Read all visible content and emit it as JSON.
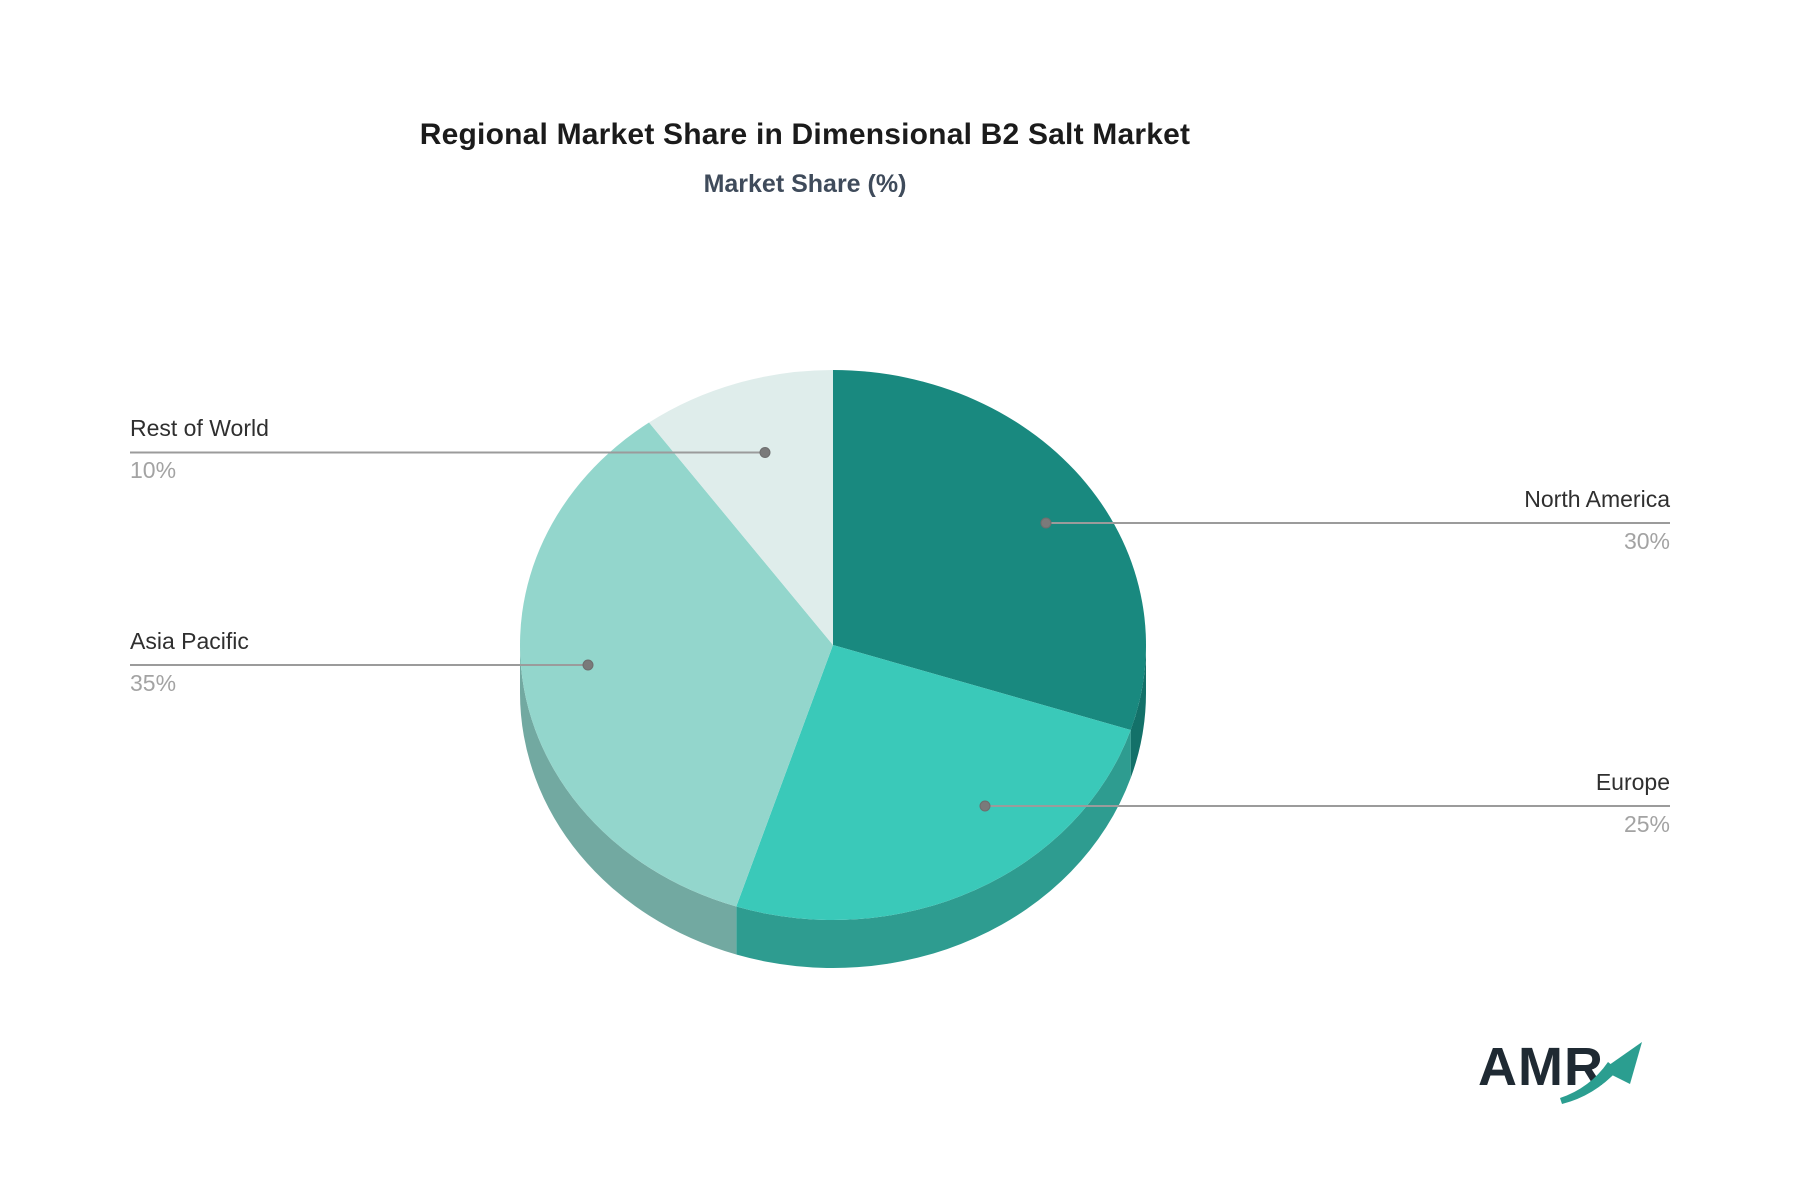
{
  "header": {
    "title": "Regional Market Share in Dimensional B2 Salt Market",
    "subtitle": "Market Share (%)"
  },
  "chart_data": {
    "type": "pie",
    "title": "Regional Market Share in Dimensional B2 Salt Market",
    "subtitle": "Market Share (%)",
    "unit": "%",
    "labels": [
      "North America",
      "Europe",
      "Asia Pacific",
      "Rest of World"
    ],
    "values": [
      30,
      25,
      35,
      10
    ],
    "colors": [
      "#19897f",
      "#3ac9b9",
      "#93d6cc",
      "#dfedeb"
    ],
    "side_colors": [
      "#137169",
      "#2e9c90",
      "#72a9a1",
      "#bcd8d4"
    ],
    "start_angle_deg": 0,
    "direction": "clockwise",
    "effect_3d": true,
    "legend": "none",
    "label_style": {
      "name_color": "#2f2f2f",
      "value_color": "#a3a3a3",
      "line_color": "#9b9b9b"
    }
  },
  "callouts": [
    {
      "label": "North America",
      "value": "30%",
      "side": "right"
    },
    {
      "label": "Europe",
      "value": "25%",
      "side": "right"
    },
    {
      "label": "Asia Pacific",
      "value": "35%",
      "side": "left"
    },
    {
      "label": "Rest of World",
      "value": "10%",
      "side": "left"
    }
  ],
  "logo": {
    "text": "AMR",
    "text_color": "#1f2a33",
    "accent_color": "#2b9e90"
  }
}
